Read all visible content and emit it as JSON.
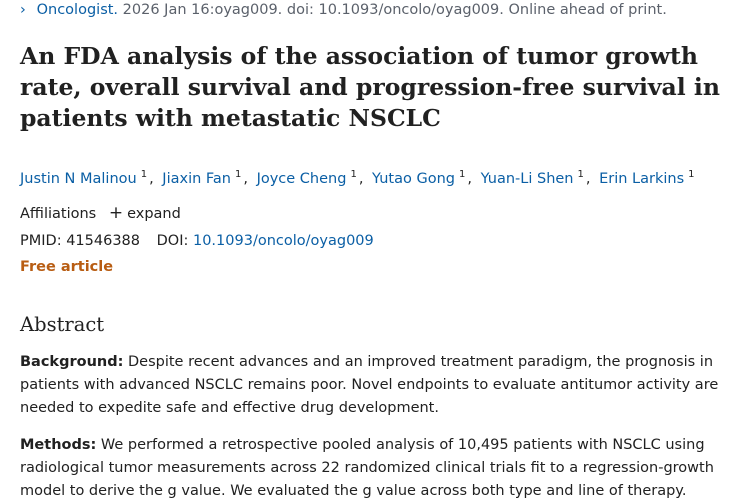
{
  "citation": {
    "chevron": "chevron-right-icon",
    "journal": "Oncologist.",
    "details": " 2026 Jan 16:oyag009. doi: 10.1093/oncolo/oyag009. Online ahead of print."
  },
  "title": "An FDA analysis of the association of tumor growth rate, overall survival and progression-free survival in patients with metastatic NSCLC",
  "authors": [
    {
      "name": "Justin N Malinou",
      "sup": "1"
    },
    {
      "name": "Jiaxin Fan",
      "sup": "1"
    },
    {
      "name": "Joyce Cheng",
      "sup": "1"
    },
    {
      "name": "Yutao Gong",
      "sup": "1"
    },
    {
      "name": "Yuan-Li Shen",
      "sup": "1"
    },
    {
      "name": "Erin Larkins",
      "sup": "1"
    }
  ],
  "affiliations": {
    "label": "Affiliations",
    "expand": "expand",
    "expand_icon": "plus-icon"
  },
  "ids": {
    "pmid_label": "PMID:",
    "pmid": "41546388",
    "doi_label": "DOI:",
    "doi": "10.1093/oncolo/oyag009"
  },
  "free_article": "Free article",
  "abstract": {
    "heading": "Abstract",
    "background_label": "Background:",
    "background_text": " Despite recent advances and an improved treatment paradigm, the prognosis in patients with advanced NSCLC remains poor. Novel endpoints to evaluate antitumor activity are needed to expedite safe and effective drug development.",
    "methods_label": "Methods:",
    "methods_text": " We performed a retrospective pooled analysis of 10,495 patients with NSCLC using radiological tumor measurements across 22 randomized clinical trials fit to a regression-growth model to derive the g value. We evaluated the g value across both type and line of therapy."
  }
}
